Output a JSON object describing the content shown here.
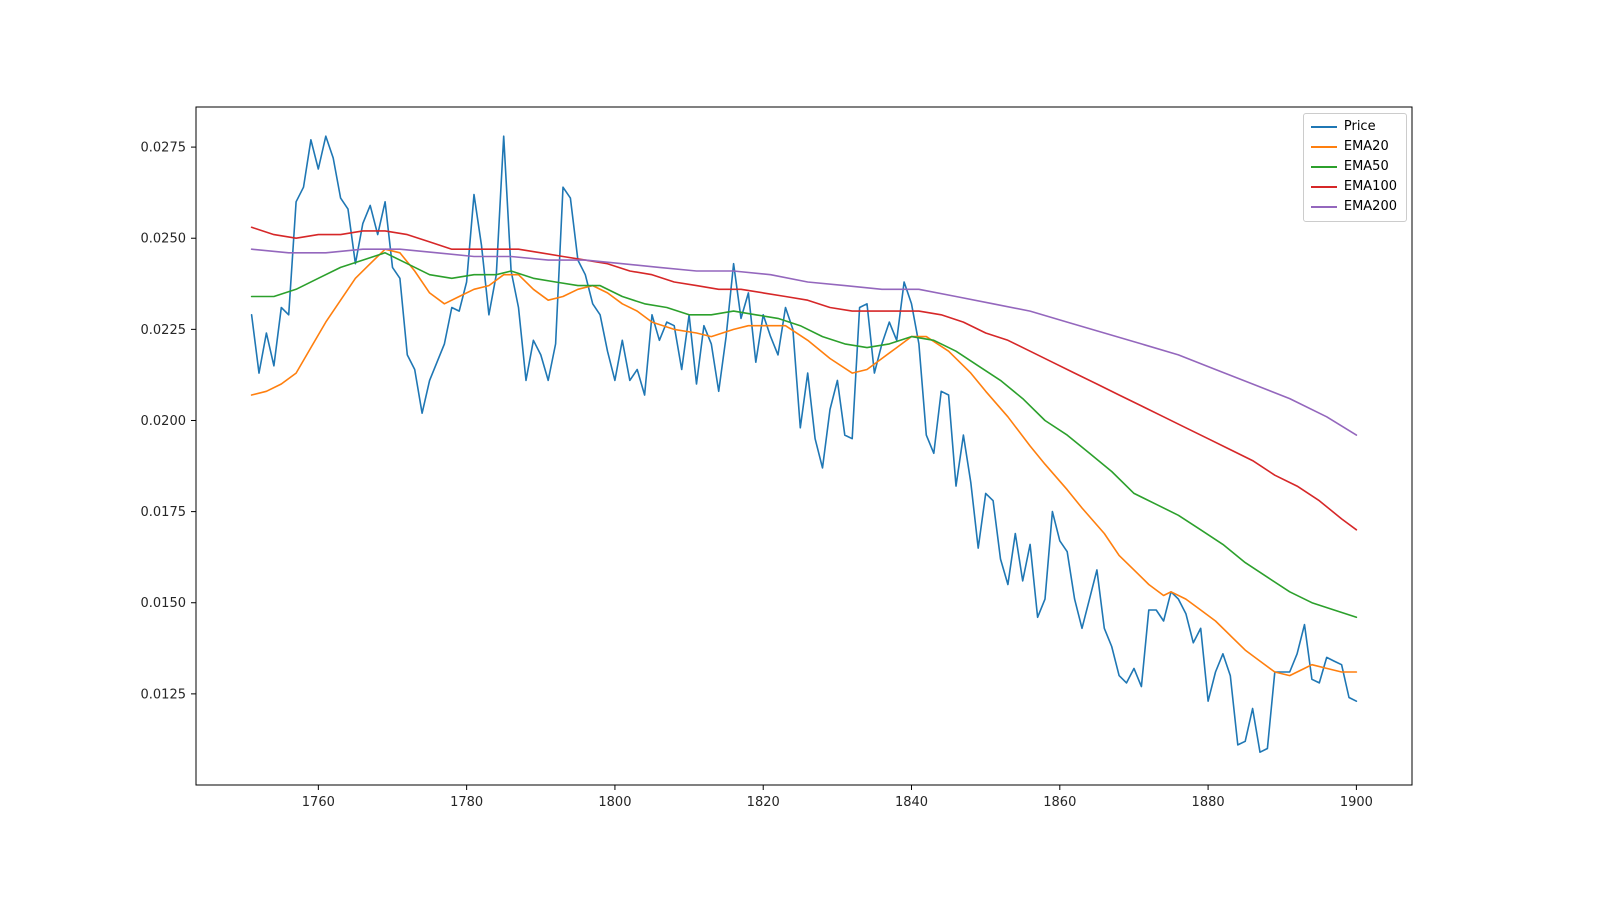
{
  "figure": {
    "background_color": "#ffffff",
    "spine_color": "#000000",
    "tick_color": "#262626"
  },
  "chart_data": {
    "type": "line",
    "title": "",
    "xlabel": "",
    "ylabel": "",
    "grid": false,
    "xlim": [
      1743.5,
      1907.5
    ],
    "ylim": [
      0.01,
      0.0286
    ],
    "xticks": [
      1760,
      1780,
      1800,
      1820,
      1840,
      1860,
      1880,
      1900
    ],
    "xtick_labels": [
      "1760",
      "1780",
      "1800",
      "1820",
      "1840",
      "1860",
      "1880",
      "1900"
    ],
    "yticks": [
      0.0125,
      0.015,
      0.0175,
      0.02,
      0.0225,
      0.025,
      0.0275
    ],
    "ytick_labels": [
      "0.0125",
      "0.0150",
      "0.0175",
      "0.0200",
      "0.0225",
      "0.0250",
      "0.0275"
    ],
    "legend": {
      "position": "upper right",
      "entries": [
        "Price",
        "EMA20",
        "EMA50",
        "EMA100",
        "EMA200"
      ]
    },
    "series": [
      {
        "name": "Price",
        "color": "#1f77b4",
        "x_start": 1751,
        "x_step": 1,
        "y": [
          0.0229,
          0.0213,
          0.0224,
          0.0215,
          0.0231,
          0.0229,
          0.026,
          0.0264,
          0.0277,
          0.0269,
          0.0278,
          0.0272,
          0.0261,
          0.0258,
          0.0243,
          0.0254,
          0.0259,
          0.0251,
          0.026,
          0.0242,
          0.0239,
          0.0218,
          0.0214,
          0.0202,
          0.0211,
          0.0216,
          0.0221,
          0.0231,
          0.023,
          0.0238,
          0.0262,
          0.0248,
          0.0229,
          0.024,
          0.0278,
          0.0241,
          0.0231,
          0.0211,
          0.0222,
          0.0218,
          0.0211,
          0.0221,
          0.0264,
          0.0261,
          0.0244,
          0.024,
          0.0232,
          0.0229,
          0.0219,
          0.0211,
          0.0222,
          0.0211,
          0.0214,
          0.0207,
          0.0229,
          0.0222,
          0.0227,
          0.0226,
          0.0214,
          0.0229,
          0.021,
          0.0226,
          0.0221,
          0.0208,
          0.0223,
          0.0243,
          0.0228,
          0.0235,
          0.0216,
          0.0229,
          0.0223,
          0.0218,
          0.0231,
          0.0225,
          0.0198,
          0.0213,
          0.0195,
          0.0187,
          0.0203,
          0.0211,
          0.0196,
          0.0195,
          0.0231,
          0.0232,
          0.0213,
          0.0221,
          0.0227,
          0.0222,
          0.0238,
          0.0232,
          0.0221,
          0.0196,
          0.0191,
          0.0208,
          0.0207,
          0.0182,
          0.0196,
          0.0183,
          0.0165,
          0.018,
          0.0178,
          0.0162,
          0.0155,
          0.0169,
          0.0156,
          0.0166,
          0.0146,
          0.0151,
          0.0175,
          0.0167,
          0.0164,
          0.0151,
          0.0143,
          0.0151,
          0.0159,
          0.0143,
          0.0138,
          0.013,
          0.0128,
          0.0132,
          0.0127,
          0.0148,
          0.0148,
          0.0145,
          0.0153,
          0.0151,
          0.0147,
          0.0139,
          0.0143,
          0.0123,
          0.0131,
          0.0136,
          0.013,
          0.0111,
          0.0112,
          0.0121,
          0.0109,
          0.011,
          0.0131,
          0.0131,
          0.0131,
          0.0136,
          0.0144,
          0.0129,
          0.0128,
          0.0135,
          0.0134,
          0.0133,
          0.0124,
          0.0123
        ]
      },
      {
        "name": "EMA20",
        "color": "#ff7f0e",
        "x": [
          1751,
          1753,
          1755,
          1757,
          1759,
          1761,
          1763,
          1765,
          1767,
          1769,
          1771,
          1773,
          1775,
          1777,
          1779,
          1781,
          1783,
          1785,
          1787,
          1789,
          1791,
          1793,
          1795,
          1797,
          1799,
          1801,
          1803,
          1805,
          1808,
          1811,
          1813,
          1816,
          1818,
          1821,
          1823,
          1826,
          1829,
          1832,
          1834,
          1836,
          1838,
          1840,
          1842,
          1845,
          1848,
          1850,
          1853,
          1856,
          1858,
          1861,
          1863,
          1866,
          1868,
          1870,
          1872,
          1874,
          1875,
          1877,
          1879,
          1881,
          1883,
          1885,
          1887,
          1889,
          1891,
          1893,
          1894,
          1896,
          1898,
          1900
        ],
        "y": [
          0.0207,
          0.0208,
          0.021,
          0.0213,
          0.022,
          0.0227,
          0.0233,
          0.0239,
          0.0243,
          0.0247,
          0.0246,
          0.0241,
          0.0235,
          0.0232,
          0.0234,
          0.0236,
          0.0237,
          0.024,
          0.024,
          0.0236,
          0.0233,
          0.0234,
          0.0236,
          0.0237,
          0.0235,
          0.0232,
          0.023,
          0.0227,
          0.0225,
          0.0224,
          0.0223,
          0.0225,
          0.0226,
          0.0226,
          0.0226,
          0.0222,
          0.0217,
          0.0213,
          0.0214,
          0.0217,
          0.022,
          0.0223,
          0.0223,
          0.0219,
          0.0213,
          0.0208,
          0.0201,
          0.0193,
          0.0188,
          0.0181,
          0.0176,
          0.0169,
          0.0163,
          0.0159,
          0.0155,
          0.0152,
          0.0153,
          0.0151,
          0.0148,
          0.0145,
          0.0141,
          0.0137,
          0.0134,
          0.0131,
          0.013,
          0.0132,
          0.0133,
          0.0132,
          0.0131,
          0.0131
        ]
      },
      {
        "name": "EMA50",
        "color": "#2ca02c",
        "x": [
          1751,
          1754,
          1757,
          1760,
          1763,
          1766,
          1769,
          1772,
          1775,
          1778,
          1781,
          1784,
          1786,
          1789,
          1792,
          1795,
          1798,
          1801,
          1804,
          1807,
          1810,
          1813,
          1816,
          1819,
          1822,
          1825,
          1828,
          1831,
          1834,
          1837,
          1840,
          1843,
          1846,
          1849,
          1852,
          1855,
          1858,
          1861,
          1864,
          1867,
          1870,
          1873,
          1876,
          1879,
          1882,
          1885,
          1888,
          1891,
          1894,
          1897,
          1900
        ],
        "y": [
          0.0234,
          0.0234,
          0.0236,
          0.0239,
          0.0242,
          0.0244,
          0.0246,
          0.0243,
          0.024,
          0.0239,
          0.024,
          0.024,
          0.0241,
          0.0239,
          0.0238,
          0.0237,
          0.0237,
          0.0234,
          0.0232,
          0.0231,
          0.0229,
          0.0229,
          0.023,
          0.0229,
          0.0228,
          0.0226,
          0.0223,
          0.0221,
          0.022,
          0.0221,
          0.0223,
          0.0222,
          0.0219,
          0.0215,
          0.0211,
          0.0206,
          0.02,
          0.0196,
          0.0191,
          0.0186,
          0.018,
          0.0177,
          0.0174,
          0.017,
          0.0166,
          0.0161,
          0.0157,
          0.0153,
          0.015,
          0.0148,
          0.0146
        ]
      },
      {
        "name": "EMA100",
        "color": "#d62728",
        "x": [
          1751,
          1754,
          1757,
          1760,
          1763,
          1766,
          1769,
          1772,
          1775,
          1778,
          1781,
          1784,
          1787,
          1790,
          1793,
          1796,
          1799,
          1802,
          1805,
          1808,
          1811,
          1814,
          1817,
          1820,
          1823,
          1826,
          1829,
          1832,
          1835,
          1838,
          1841,
          1844,
          1847,
          1850,
          1853,
          1856,
          1859,
          1862,
          1865,
          1868,
          1871,
          1874,
          1877,
          1880,
          1883,
          1886,
          1889,
          1892,
          1895,
          1898,
          1900
        ],
        "y": [
          0.0253,
          0.0251,
          0.025,
          0.0251,
          0.0251,
          0.0252,
          0.0252,
          0.0251,
          0.0249,
          0.0247,
          0.0247,
          0.0247,
          0.0247,
          0.0246,
          0.0245,
          0.0244,
          0.0243,
          0.0241,
          0.024,
          0.0238,
          0.0237,
          0.0236,
          0.0236,
          0.0235,
          0.0234,
          0.0233,
          0.0231,
          0.023,
          0.023,
          0.023,
          0.023,
          0.0229,
          0.0227,
          0.0224,
          0.0222,
          0.0219,
          0.0216,
          0.0213,
          0.021,
          0.0207,
          0.0204,
          0.0201,
          0.0198,
          0.0195,
          0.0192,
          0.0189,
          0.0185,
          0.0182,
          0.0178,
          0.0173,
          0.017
        ]
      },
      {
        "name": "EMA200",
        "color": "#9467bd",
        "x": [
          1751,
          1756,
          1761,
          1766,
          1771,
          1776,
          1781,
          1786,
          1791,
          1796,
          1801,
          1806,
          1811,
          1816,
          1821,
          1826,
          1831,
          1836,
          1841,
          1846,
          1851,
          1856,
          1861,
          1866,
          1871,
          1876,
          1881,
          1886,
          1891,
          1896,
          1900
        ],
        "y": [
          0.0247,
          0.0246,
          0.0246,
          0.0247,
          0.0247,
          0.0246,
          0.0245,
          0.0245,
          0.0244,
          0.0244,
          0.0243,
          0.0242,
          0.0241,
          0.0241,
          0.024,
          0.0238,
          0.0237,
          0.0236,
          0.0236,
          0.0234,
          0.0232,
          0.023,
          0.0227,
          0.0224,
          0.0221,
          0.0218,
          0.0214,
          0.021,
          0.0206,
          0.0201,
          0.0196
        ]
      }
    ]
  }
}
